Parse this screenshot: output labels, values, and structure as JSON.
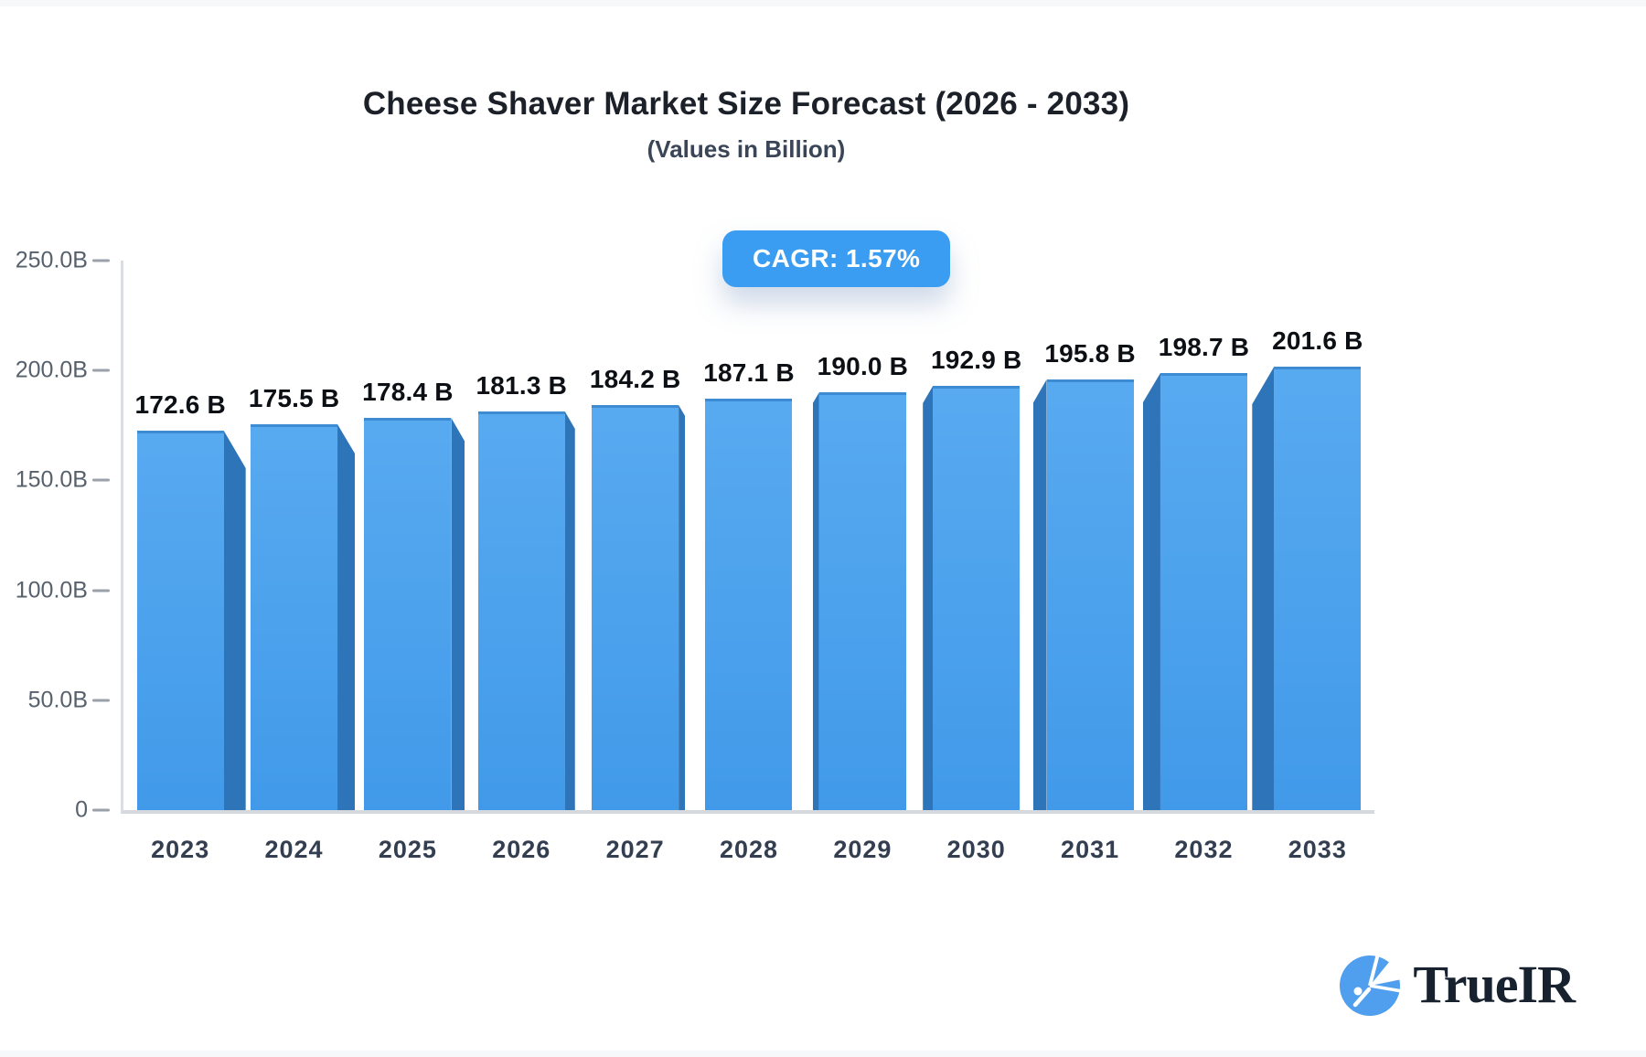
{
  "badge": {
    "text": "CAGR: 1.57%",
    "value_percent": 1.57
  },
  "brand": {
    "name": "TrueIR"
  },
  "colors": {
    "bar_face_top": "#58aaf0",
    "bar_face_bottom": "#419ae9",
    "bar_side": "#2e74b8",
    "badge_bg": "#3b9df2",
    "badge_text": "#ffffff",
    "axis_line": "#d5d9de",
    "tick_text": "#57606d",
    "year_text": "#333e50",
    "value_text": "#0c0f14",
    "brand_blue": "#4f9fee"
  },
  "chart_data": {
    "type": "bar",
    "title": "Cheese Shaver Market Size Forecast (2026 - 2033)",
    "subtitle": "(Values in Billion)",
    "categories": [
      "2023",
      "2024",
      "2025",
      "2026",
      "2027",
      "2028",
      "2029",
      "2030",
      "2031",
      "2032",
      "2033"
    ],
    "values": [
      172.6,
      175.5,
      178.4,
      181.3,
      184.2,
      187.1,
      190.0,
      192.9,
      195.8,
      198.7,
      201.6
    ],
    "value_labels": [
      "172.6 B",
      "175.5 B",
      "178.4 B",
      "181.3 B",
      "184.2 B",
      "187.1 B",
      "190.0 B",
      "192.9 B",
      "195.8 B",
      "198.7 B",
      "201.6 B"
    ],
    "unit": "Billion",
    "ylim": [
      0,
      250
    ],
    "y_ticks": [
      {
        "label": "250.0B",
        "value": 250
      },
      {
        "label": "200.0B",
        "value": 200
      },
      {
        "label": "150.0B",
        "value": 150
      },
      {
        "label": "100.0B",
        "value": 100
      },
      {
        "label": "50.0B",
        "value": 50
      },
      {
        "label": "0",
        "value": 0
      }
    ],
    "grid": false,
    "legend": false,
    "style": "3d-beveled-columns"
  }
}
